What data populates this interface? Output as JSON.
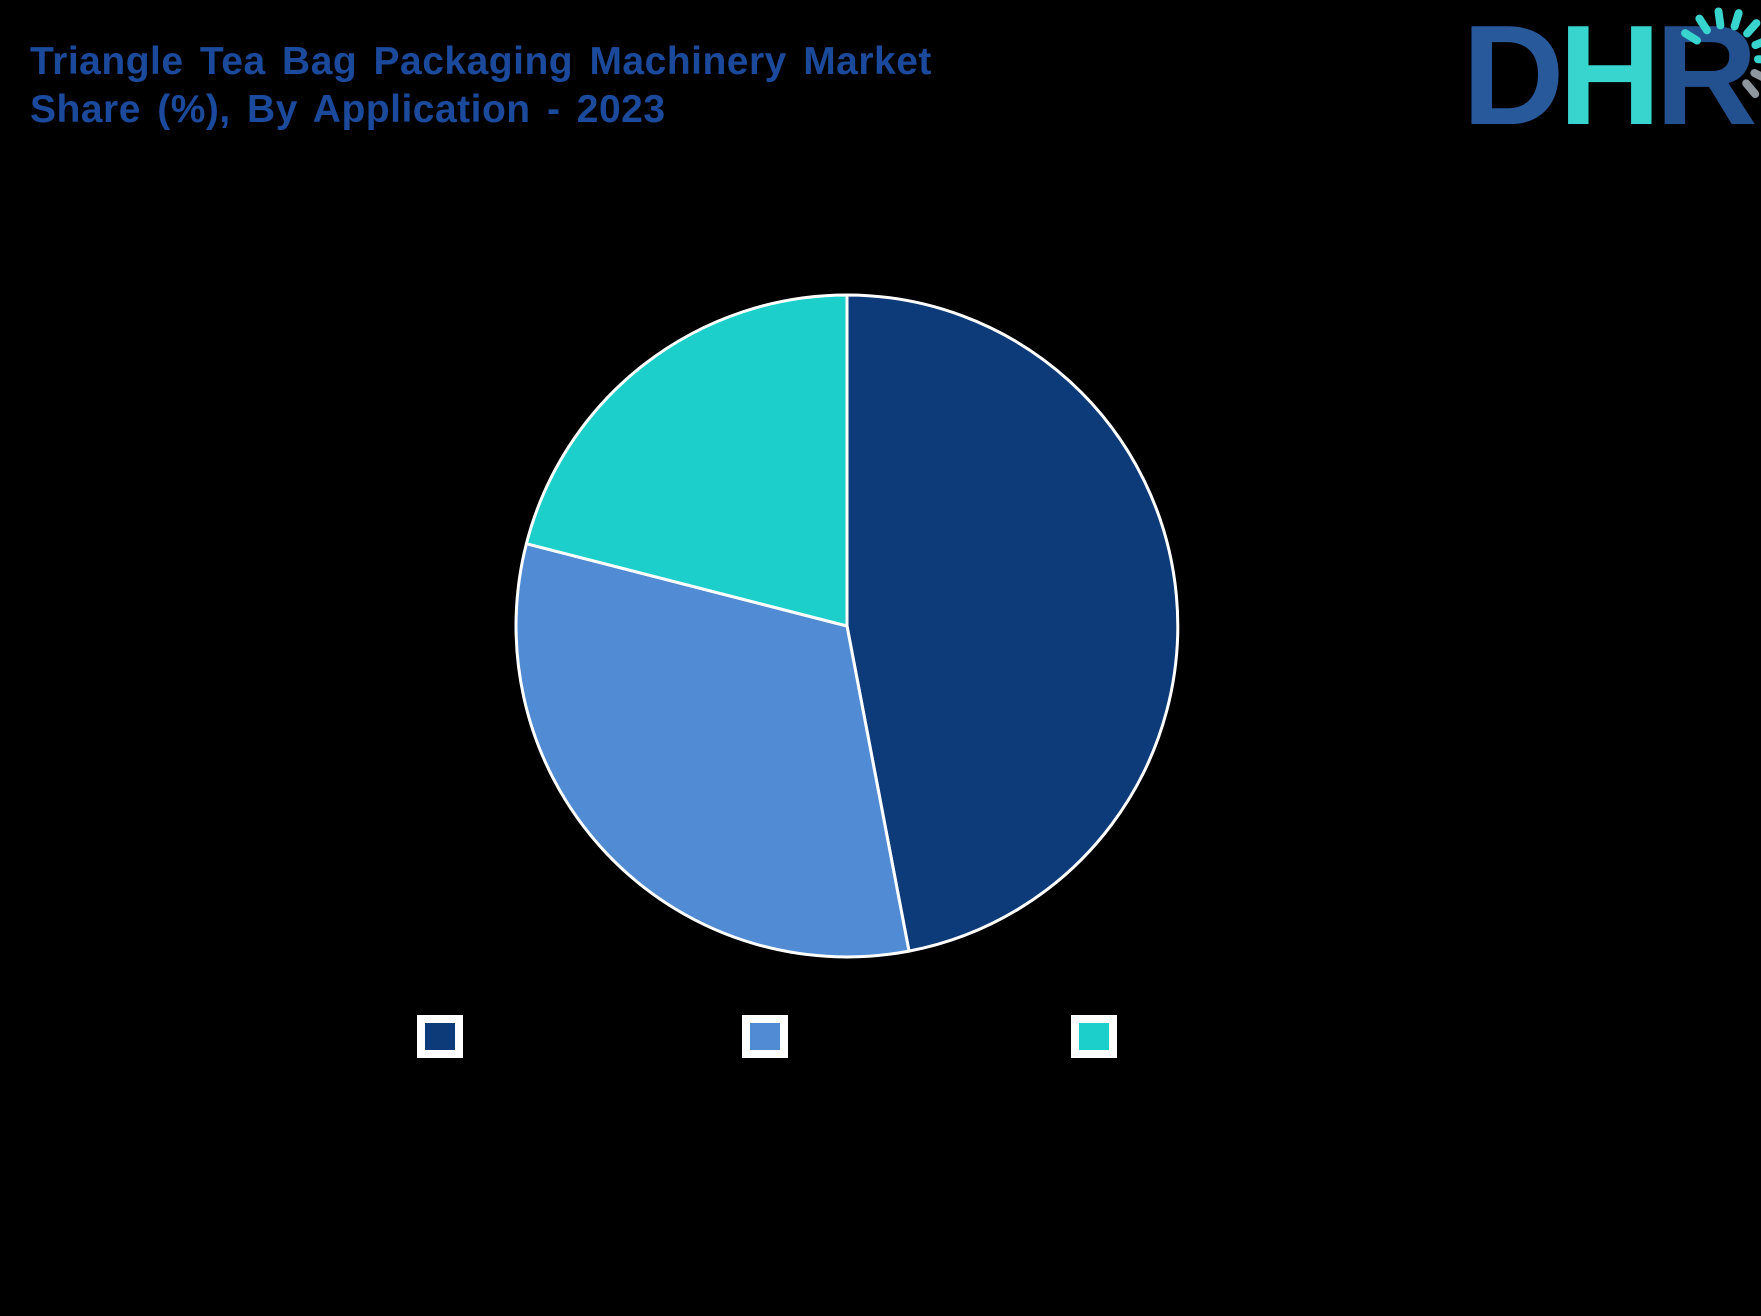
{
  "page": {
    "background": "#000000"
  },
  "header": {
    "title_line1": "Triangle Tea Bag Packaging Machinery Market",
    "title_line2": "Share (%), By Application - 2023",
    "title_color": "#1B4A9C"
  },
  "logo": {
    "text": "DHR",
    "letters": [
      {
        "char": "D",
        "color": "#27599B"
      },
      {
        "char": "H",
        "color": "#38D4CE"
      },
      {
        "char": "R",
        "color": "#23508F"
      }
    ],
    "burst_color": "#38D4CE",
    "burst_alt_color": "#8E979E"
  },
  "chart_data": {
    "type": "pie",
    "title": "Triangle Tea Bag Packaging Machinery Market Share (%), By Application - 2023",
    "year_label": "2023",
    "start_angle_deg": 0,
    "direction": "clockwise",
    "legend_position": "bottom",
    "legend_labels_visible": false,
    "slice_border_color": "#FFFFFF",
    "series": [
      {
        "name": "",
        "value": 47,
        "color": "#0D3A78"
      },
      {
        "name": "",
        "value": 32,
        "color": "#518BD3"
      },
      {
        "name": "",
        "value": 21,
        "color": "#1CCFCA"
      }
    ]
  }
}
